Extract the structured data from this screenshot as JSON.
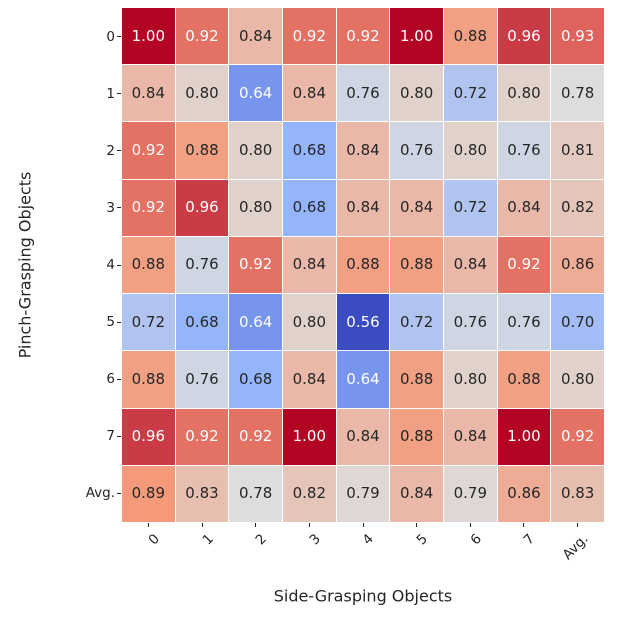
{
  "chart_data": {
    "type": "heatmap",
    "xlabel": "Side-Grasping Objects",
    "ylabel": "Pinch-Grasping Objects",
    "row_labels": [
      "0",
      "1",
      "2",
      "3",
      "4",
      "5",
      "6",
      "7",
      "Avg."
    ],
    "col_labels": [
      "0",
      "1",
      "2",
      "3",
      "4",
      "5",
      "6",
      "7",
      "Avg."
    ],
    "values": [
      [
        1.0,
        0.92,
        0.84,
        0.92,
        0.92,
        1.0,
        0.88,
        0.96,
        0.93
      ],
      [
        0.84,
        0.8,
        0.64,
        0.84,
        0.76,
        0.8,
        0.72,
        0.8,
        0.78
      ],
      [
        0.92,
        0.88,
        0.8,
        0.68,
        0.84,
        0.76,
        0.8,
        0.76,
        0.81
      ],
      [
        0.92,
        0.96,
        0.8,
        0.68,
        0.84,
        0.84,
        0.72,
        0.84,
        0.82
      ],
      [
        0.88,
        0.76,
        0.92,
        0.84,
        0.88,
        0.88,
        0.84,
        0.92,
        0.86
      ],
      [
        0.72,
        0.68,
        0.64,
        0.8,
        0.56,
        0.72,
        0.76,
        0.76,
        0.7
      ],
      [
        0.88,
        0.76,
        0.68,
        0.84,
        0.64,
        0.88,
        0.8,
        0.88,
        0.8
      ],
      [
        0.96,
        0.92,
        0.92,
        1.0,
        0.84,
        0.88,
        0.84,
        1.0,
        0.92
      ],
      [
        0.89,
        0.83,
        0.78,
        0.82,
        0.79,
        0.84,
        0.79,
        0.86,
        0.83
      ]
    ],
    "value_decimals": 2,
    "vmin": 0.56,
    "vmax": 1.0,
    "colormap": "coolwarm",
    "colormap_stops": [
      "#3b4cc0",
      "#8db0fe",
      "#dddddd",
      "#f49a7b",
      "#b40426"
    ],
    "annotation_dark_color": "#262626",
    "annotation_light_color": "#ffffff",
    "grid_line_color": "#ffffff",
    "background_color": "#ffffff",
    "legend_position": "none",
    "grid": false
  }
}
